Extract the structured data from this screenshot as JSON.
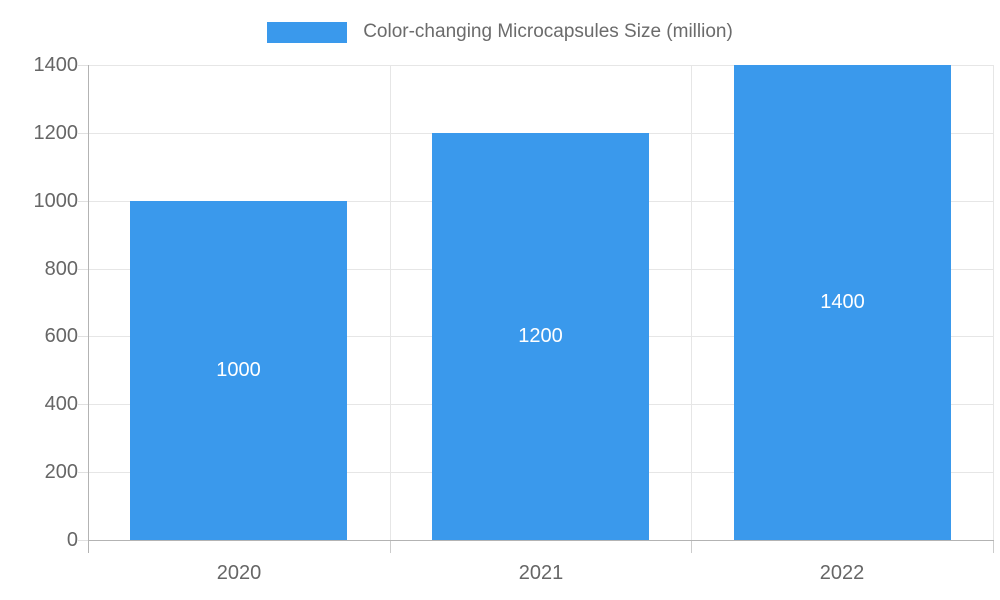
{
  "legend": {
    "swatch_color": "#3a99ec"
  },
  "colors": {
    "bar": "#3a99ec",
    "grid": "#e6e6e6",
    "axis": "#b3b3b3",
    "axis_text": "#666666",
    "legend_text": "#6b6b6b",
    "bar_label_text": "#ffffff"
  },
  "chart_data": {
    "type": "bar",
    "series_name": "Color-changing Microcapsules Size (million)",
    "categories": [
      "2020",
      "2021",
      "2022"
    ],
    "values": [
      1000,
      1200,
      1400
    ],
    "bar_labels": [
      "1000",
      "1200",
      "1400"
    ],
    "title": "",
    "xlabel": "",
    "ylabel": "",
    "ylim": [
      0,
      1400
    ],
    "yticks": [
      0,
      200,
      400,
      600,
      800,
      1000,
      1200,
      1400
    ],
    "grid": true,
    "legend_position": "top",
    "bar_color": "#3a99ec"
  }
}
